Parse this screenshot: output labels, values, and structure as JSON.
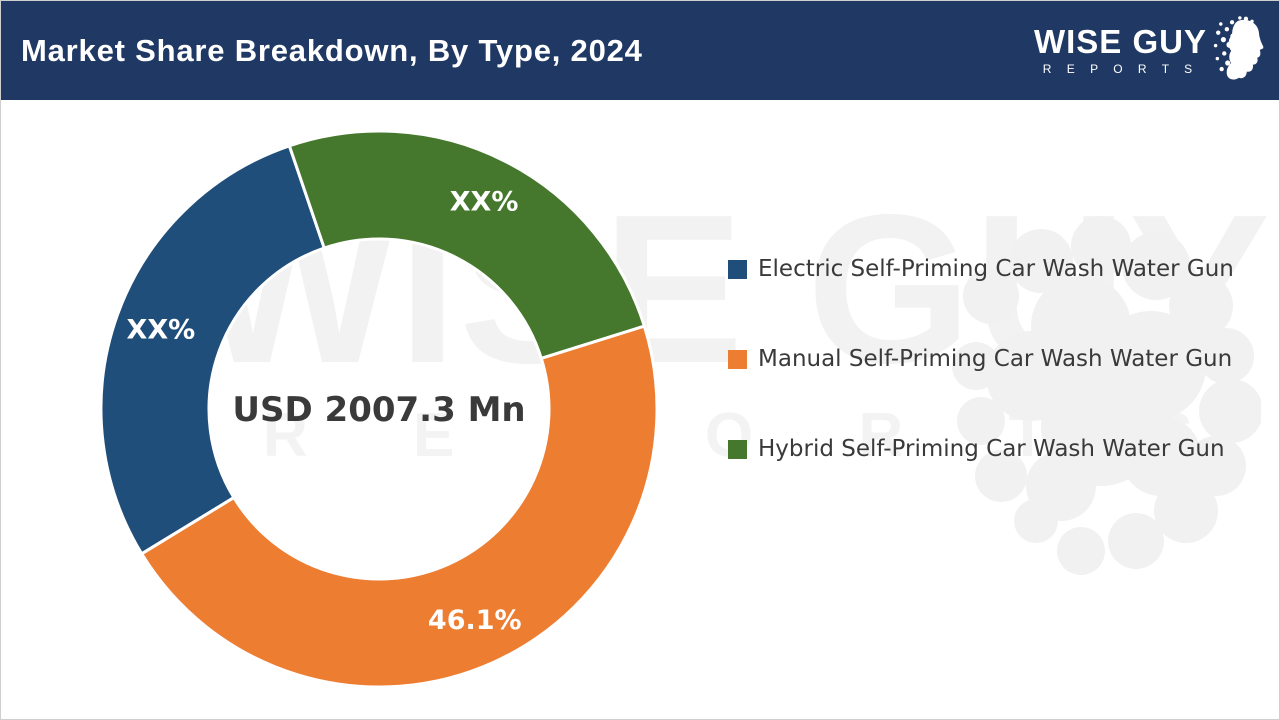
{
  "page": {
    "bg_color": "#ffffff",
    "border_color": "#cfcfcf"
  },
  "header": {
    "title": "Market Share Breakdown, By Type, 2024",
    "bg_color": "#203864",
    "brand": {
      "line1": "WISE GUY",
      "line2": "R E P O R T S"
    }
  },
  "watermark": {
    "line1": "WISE GUY",
    "line2": "R E P O R T S"
  },
  "chart_data": {
    "type": "donut",
    "title": "Market Share Breakdown, By Type, 2024",
    "center_label": "USD 2007.3 Mn",
    "start_angle_deg": 108.8,
    "direction": "counterclockwise",
    "donut_hole_ratio": 0.61,
    "legend_position": "right",
    "grid": false,
    "value_label_color": "#ffffff",
    "center_label_color": "#3a3a3a",
    "legend_text_color": "#3a3a3a",
    "segments": [
      {
        "label": "Electric Self-Priming Car Wash Water Gun",
        "display_value": "XX%",
        "share_pct_est": 28.5,
        "color": "#1F4E7A"
      },
      {
        "label": "Manual Self-Priming Car Wash Water Gun",
        "display_value": "46.1%",
        "share_pct_est": 46.1,
        "color": "#ED7D31"
      },
      {
        "label": "Hybrid Self-Priming Car Wash Water Gun",
        "display_value": "XX%",
        "share_pct_est": 25.4,
        "color": "#45782C"
      }
    ]
  }
}
